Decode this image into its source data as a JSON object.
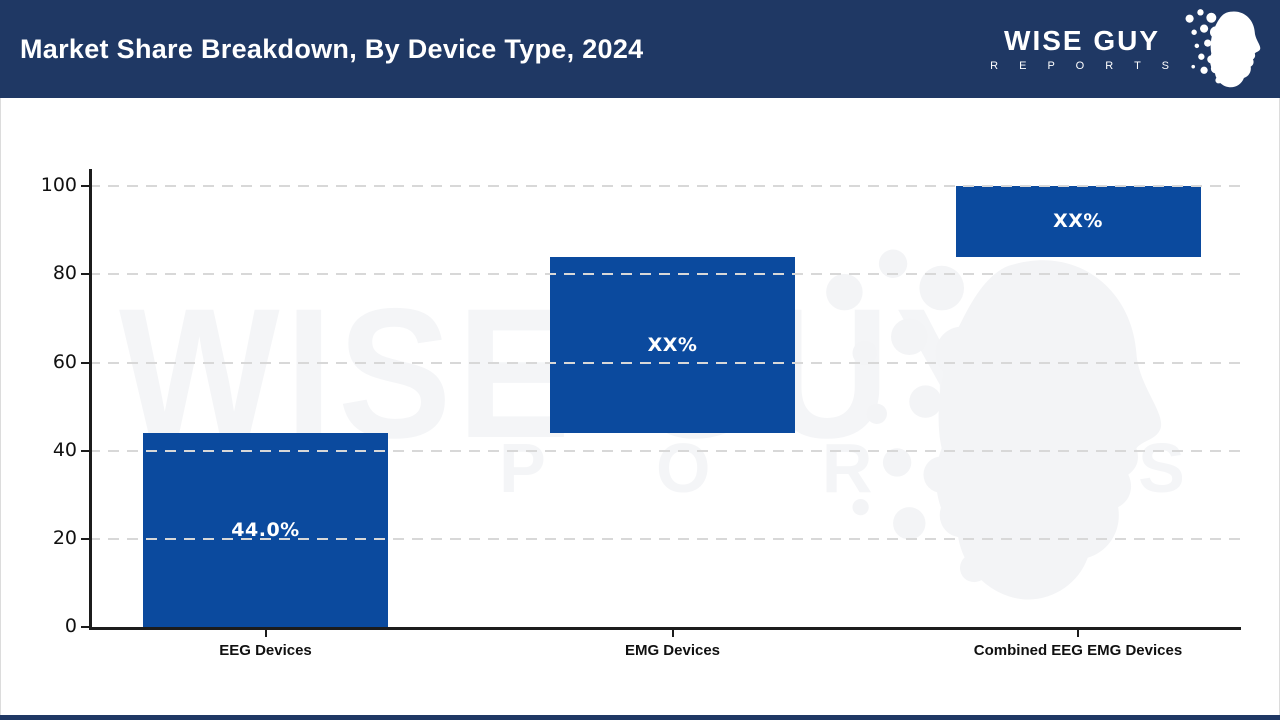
{
  "header": {
    "title": "Market Share Breakdown, By Device Type, 2024",
    "bg_color": "#1f3864",
    "logo": {
      "name": "WISE GUY",
      "sub": "R E P O R T S"
    }
  },
  "watermark": {
    "big_text": "WISE GUY",
    "sub_text": "R E P O R T S"
  },
  "chart_data": {
    "type": "bar",
    "variant": "waterfall",
    "title": "Market Share Breakdown, By Device Type, 2024",
    "categories": [
      "EEG Devices",
      "EMG Devices",
      "Combined EEG EMG Devices"
    ],
    "bars": [
      {
        "category": "EEG Devices",
        "start": 0,
        "end": 44,
        "label": "44.0%"
      },
      {
        "category": "EMG Devices",
        "start": 44,
        "end": 84,
        "label": "XX%"
      },
      {
        "category": "Combined EEG EMG Devices",
        "start": 84,
        "end": 100,
        "label": "XX%"
      }
    ],
    "ylim": [
      0,
      100
    ],
    "yticks": [
      0,
      20,
      40,
      60,
      80,
      100
    ],
    "xlabel": "",
    "ylabel": "",
    "grid": {
      "horizontal": true,
      "style": "dashed"
    },
    "legend": null,
    "bar_color": "#0b4a9e",
    "bar_label_color": "#ffffff",
    "axis_color": "#1c1c1c"
  },
  "footer": {
    "bar_color": "#1f3864"
  }
}
